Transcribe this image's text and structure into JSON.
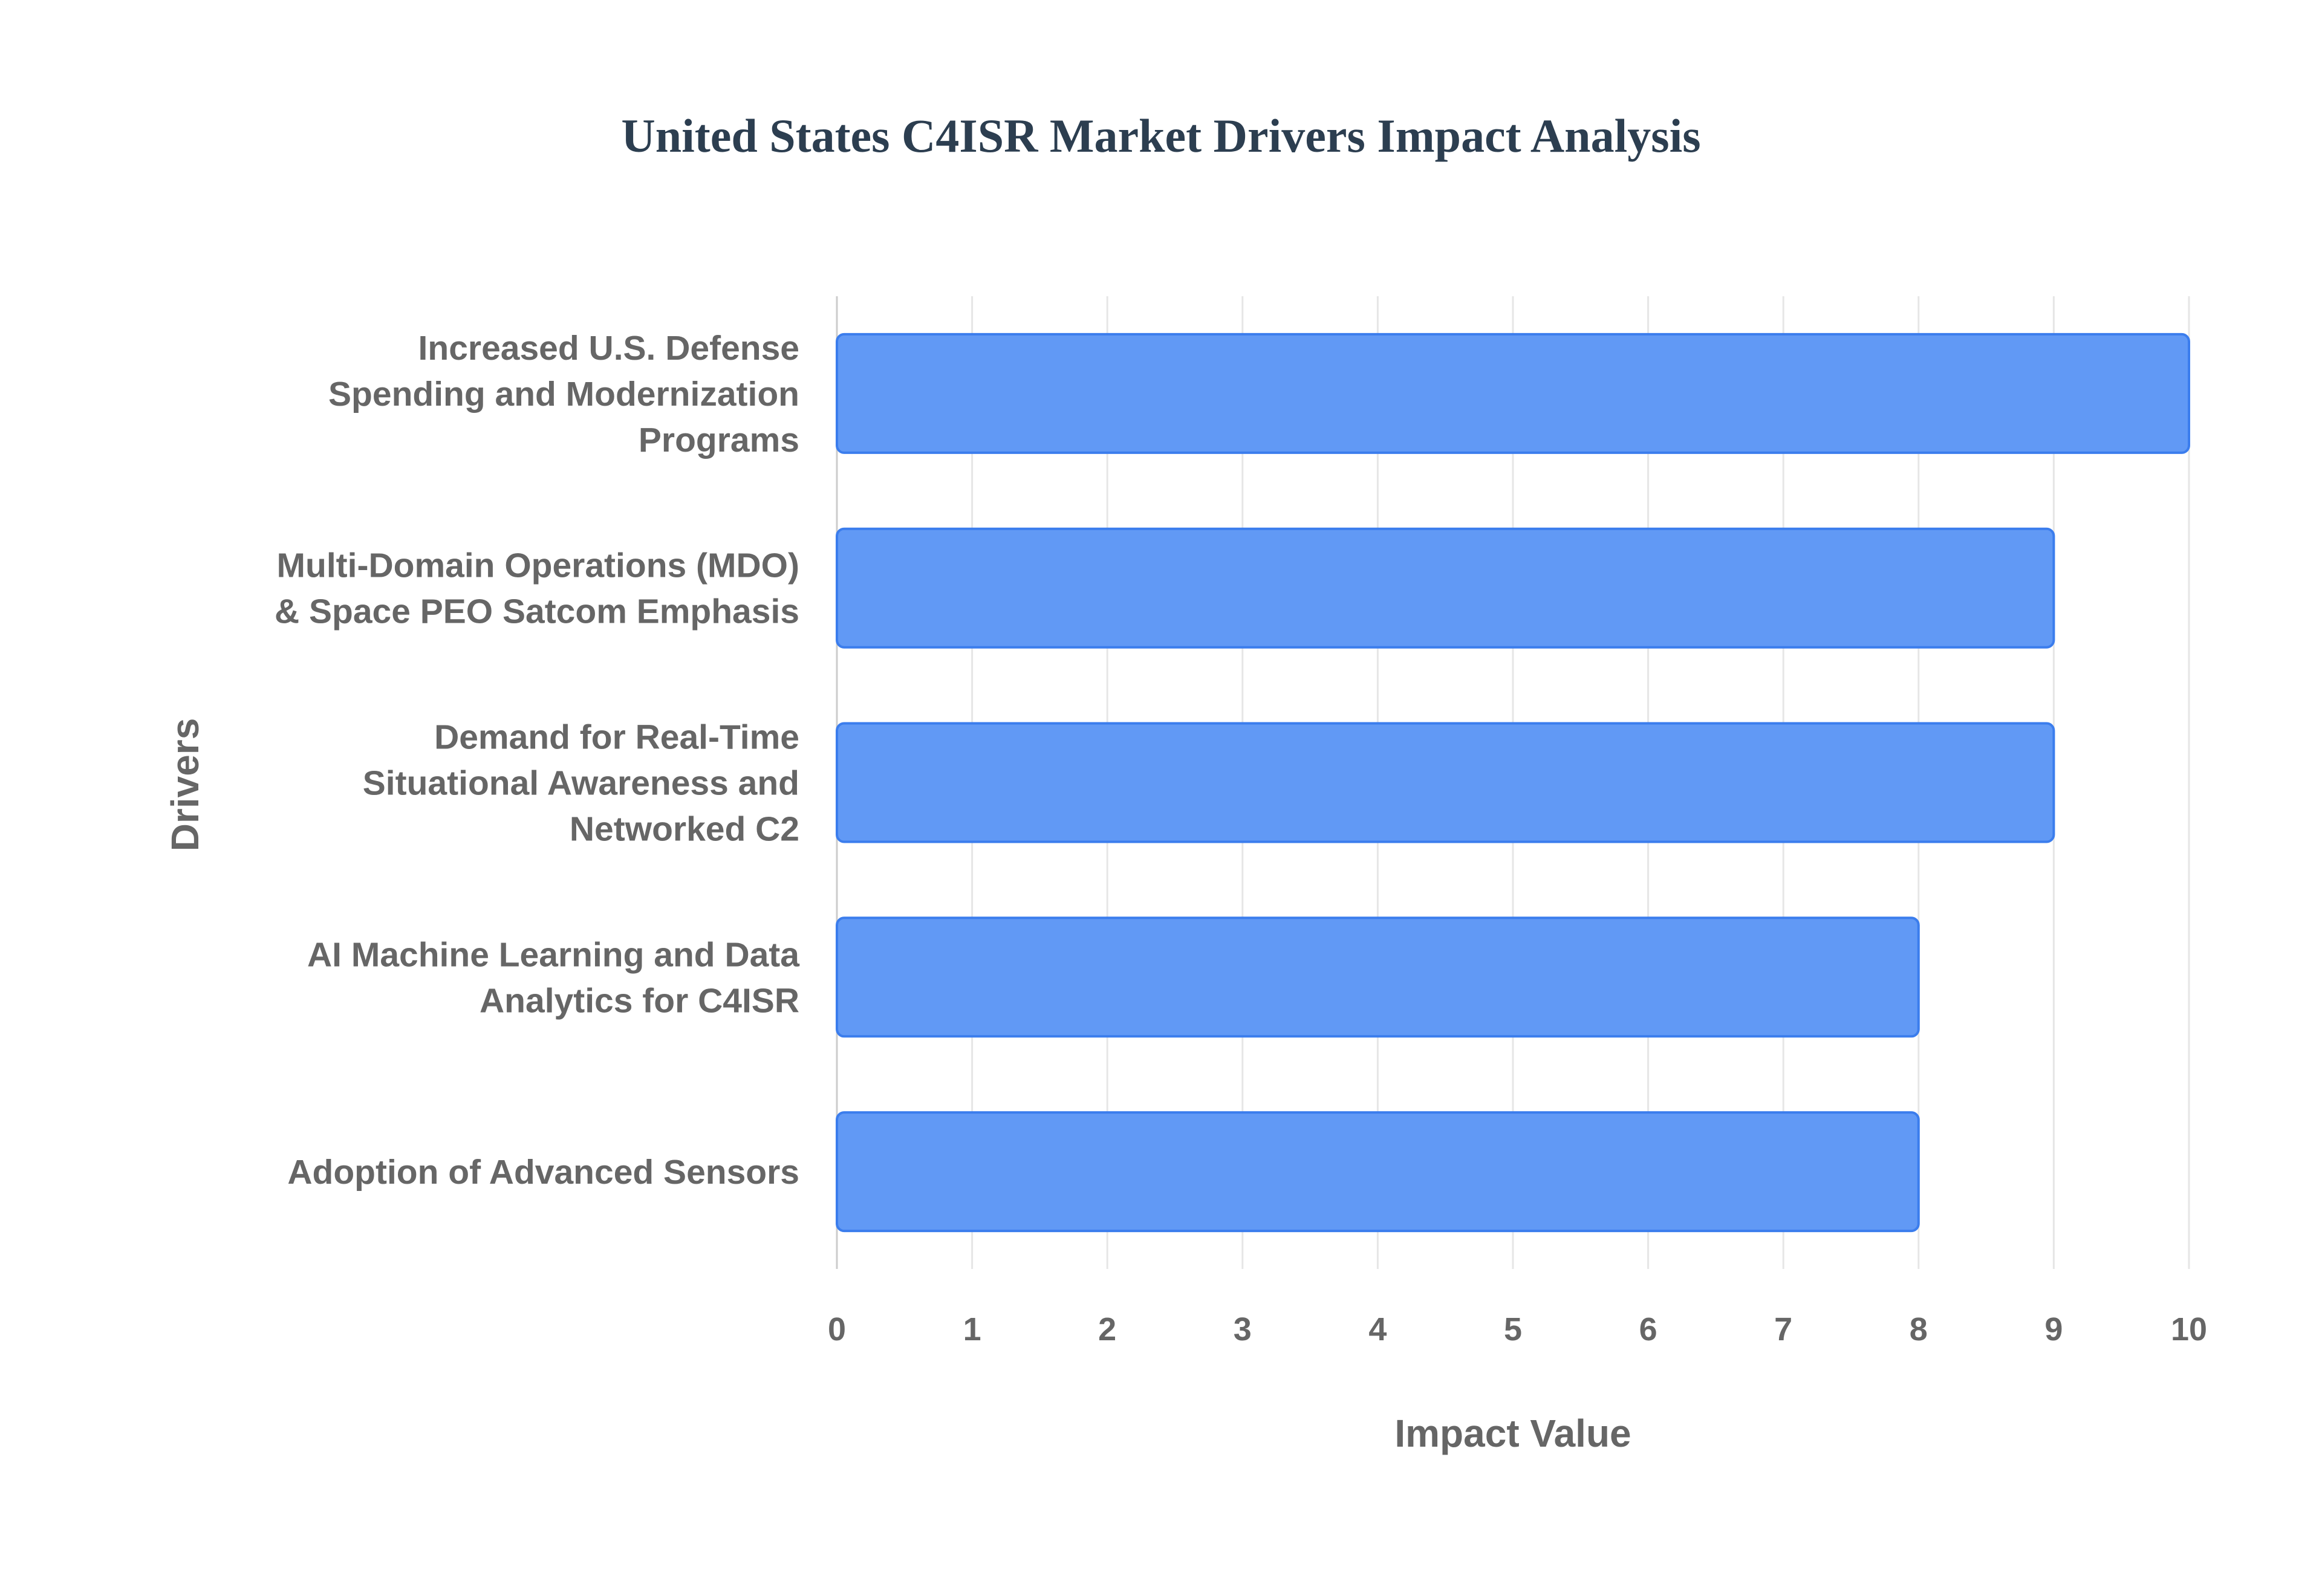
{
  "chart_data": {
    "type": "bar",
    "orientation": "horizontal",
    "title": "United States C4ISR Market Drivers Impact Analysis",
    "xlabel": "Impact Value",
    "ylabel": "Drivers",
    "xlim": [
      0,
      10
    ],
    "xticks": [
      "0",
      "1",
      "2",
      "3",
      "4",
      "5",
      "6",
      "7",
      "8",
      "9",
      "10"
    ],
    "grid": true,
    "bar_color": "#6199f5",
    "bar_border_color": "#3b7ded",
    "categories": [
      [
        "Increased U.S. Defense",
        "Spending and Modernization",
        "Programs"
      ],
      [
        "Multi-Domain Operations (MDO)",
        "& Space PEO Satcom Emphasis"
      ],
      [
        "Demand for Real-Time",
        "Situational Awareness and",
        "Networked C2"
      ],
      [
        "AI Machine Learning and Data",
        "Analytics for C4ISR"
      ],
      [
        "Adoption of Advanced Sensors"
      ]
    ],
    "values": [
      10,
      9,
      9,
      8,
      8
    ]
  }
}
